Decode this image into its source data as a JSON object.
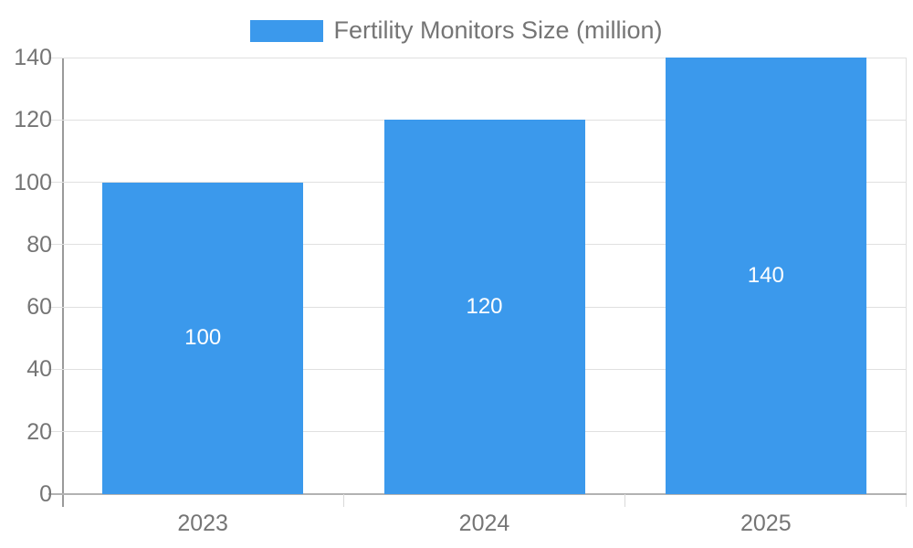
{
  "legend": {
    "label": "Fertility Monitors Size (million)",
    "swatch_icon": "legend-color-swatch"
  },
  "colors": {
    "bar": "#3b99ec",
    "axis_text": "#757575",
    "grid_line": "#e0e0e0",
    "baseline": "#b2b2b2",
    "y_axis_line": "#9a9a9a",
    "bar_label_text": "#ffffff",
    "background": "#ffffff"
  },
  "chart_data": {
    "type": "bar",
    "title": "Fertility Monitors Size (million)",
    "categories": [
      "2023",
      "2024",
      "2025"
    ],
    "series": [
      {
        "name": "Fertility Monitors Size (million)",
        "values": [
          100,
          120,
          140
        ]
      }
    ],
    "data_labels": [
      "100",
      "120",
      "140"
    ],
    "xlabel": "",
    "ylabel": "",
    "ylim": [
      0,
      140
    ],
    "yticks": [
      0,
      20,
      40,
      60,
      80,
      100,
      120,
      140
    ],
    "grid": true,
    "legend_position": "top"
  }
}
